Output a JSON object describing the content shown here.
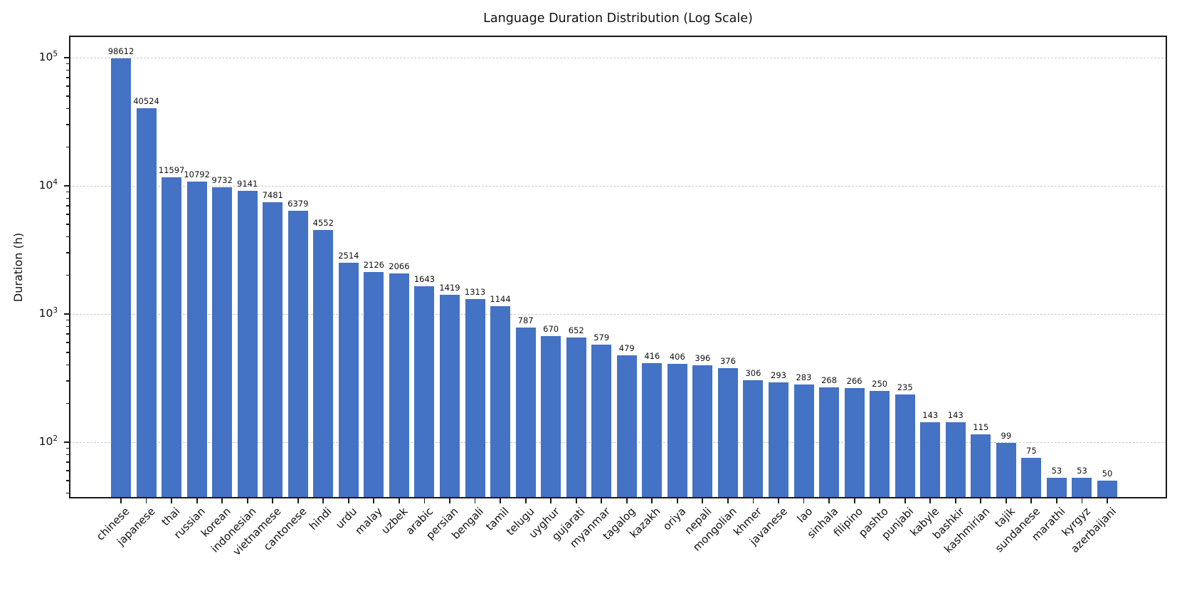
{
  "chart_data": {
    "type": "bar",
    "title": "Language Duration Distribution (Log Scale)",
    "xlabel": "",
    "ylabel": "Duration (h)",
    "yscale": "log",
    "ylim": [
      36.4,
      148600
    ],
    "ytick_exponents": [
      2,
      3,
      4,
      5
    ],
    "grid": "horizontal dashed major gridlines",
    "legend": "none",
    "value_labels_shown": true,
    "bar_color": "#4472C4",
    "grid_color": "#c9c9c9",
    "axis_color": "#1a1a1a",
    "categories": [
      "chinese",
      "japanese",
      "thai",
      "russian",
      "korean",
      "indonesian",
      "vietnamese",
      "cantonese",
      "hindi",
      "urdu",
      "malay",
      "uzbek",
      "arabic",
      "persian",
      "bengali",
      "tamil",
      "telugu",
      "uyghur",
      "gujarati",
      "myanmar",
      "tagalog",
      "kazakh",
      "oriya",
      "nepali",
      "mongolian",
      "khmer",
      "javanese",
      "lao",
      "sinhala",
      "filipino",
      "pashto",
      "punjabi",
      "kabyle",
      "bashkir",
      "kashmirian",
      "tajik",
      "sundanese",
      "marathi",
      "kyrgyz",
      "azerbaijani"
    ],
    "values": [
      98612,
      40524,
      11597,
      10792,
      9732,
      9141,
      7481,
      6379,
      4552,
      2514,
      2126,
      2066,
      1643,
      1419,
      1313,
      1144,
      787,
      670,
      652,
      579,
      479,
      416,
      406,
      396,
      376,
      306,
      293,
      283,
      268,
      266,
      250,
      235,
      143,
      143,
      115,
      99,
      75,
      53,
      53,
      50
    ]
  }
}
